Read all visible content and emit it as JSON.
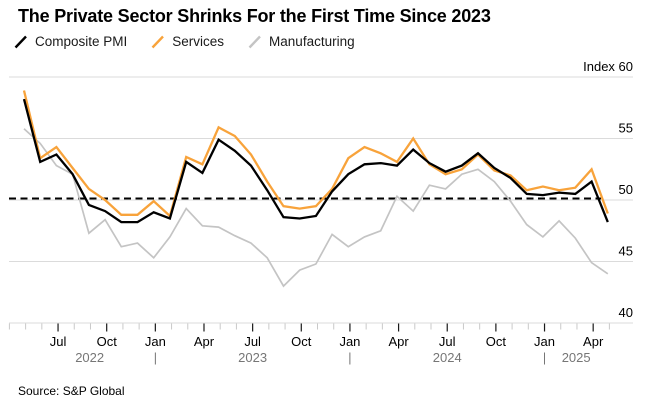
{
  "title": "The Private Sector Shrinks For the First Time Since 2023",
  "legend": {
    "items": [
      {
        "label": "Composite PMI",
        "color": "#000000",
        "icon": "diagonal-line-icon"
      },
      {
        "label": "Services",
        "color": "#F8A33B",
        "icon": "diagonal-line-icon"
      },
      {
        "label": "Manufacturing",
        "color": "#C4C4C4",
        "icon": "diagonal-line-icon"
      }
    ]
  },
  "source_line": "Source: S&P Global",
  "chart_data": {
    "type": "line",
    "title": "The Private Sector Shrinks For the First Time Since 2023",
    "x": [
      "Apr 2022",
      "May 2022",
      "Jun 2022",
      "Jul 2022",
      "Aug 2022",
      "Sep 2022",
      "Oct 2022",
      "Nov 2022",
      "Dec 2022",
      "Jan 2023",
      "Feb 2023",
      "Mar 2023",
      "Apr 2023",
      "May 2023",
      "Jun 2023",
      "Jul 2023",
      "Aug 2023",
      "Sep 2023",
      "Oct 2023",
      "Nov 2023",
      "Dec 2023",
      "Jan 2024",
      "Feb 2024",
      "Mar 2024",
      "Apr 2024",
      "May 2024",
      "Jun 2024",
      "Jul 2024",
      "Aug 2024",
      "Sep 2024",
      "Oct 2024",
      "Nov 2024",
      "Dec 2024",
      "Jan 2025",
      "Feb 2025",
      "Mar 2025",
      "Apr 2025"
    ],
    "series": [
      {
        "name": "Manufacturing",
        "color": "#C4C4C4",
        "stroke_width": 1.7,
        "values": [
          55.8,
          54.6,
          52.8,
          52.1,
          47.3,
          48.4,
          46.2,
          46.5,
          45.3,
          47.0,
          49.3,
          47.9,
          47.8,
          47.1,
          46.5,
          45.3,
          43.0,
          44.3,
          44.8,
          47.2,
          46.2,
          47.0,
          47.5,
          50.3,
          49.1,
          51.2,
          50.9,
          52.1,
          52.5,
          51.5,
          49.9,
          48.0,
          47.0,
          48.3,
          46.9,
          44.9,
          44.0
        ]
      },
      {
        "name": "Services",
        "color": "#F8A33B",
        "stroke_width": 2.3,
        "values": [
          58.9,
          53.4,
          54.3,
          52.6,
          50.9,
          50.0,
          48.8,
          48.8,
          49.9,
          48.7,
          53.5,
          52.9,
          55.9,
          55.2,
          53.7,
          51.5,
          49.5,
          49.3,
          49.5,
          50.9,
          53.4,
          54.3,
          53.8,
          53.1,
          55.0,
          52.9,
          52.1,
          52.5,
          53.7,
          52.4,
          52.0,
          50.8,
          51.1,
          50.8,
          51.0,
          52.5,
          48.9
        ]
      },
      {
        "name": "Composite PMI",
        "color": "#000000",
        "stroke_width": 2.3,
        "values": [
          58.2,
          53.1,
          53.7,
          52.1,
          49.6,
          49.1,
          48.2,
          48.2,
          49.0,
          48.5,
          53.1,
          52.2,
          54.9,
          54.0,
          52.8,
          50.8,
          48.6,
          48.5,
          48.7,
          50.7,
          52.1,
          52.9,
          53.0,
          52.8,
          54.1,
          53.0,
          52.3,
          52.8,
          53.8,
          52.6,
          51.8,
          50.5,
          50.4,
          50.6,
          50.5,
          51.5,
          48.2
        ]
      }
    ],
    "ylim": [
      40,
      60
    ],
    "y_ticks": [
      60,
      55,
      50,
      45,
      40
    ],
    "y_tick_labels": [
      "Index 60",
      "55",
      "50",
      "45",
      "40"
    ],
    "threshold_line": {
      "value": 50,
      "style": "dashed",
      "color": "#000000"
    },
    "x_quarter_ticks": [
      {
        "i": 3,
        "label": "Jul"
      },
      {
        "i": 6,
        "label": "Oct"
      },
      {
        "i": 9,
        "label": "Jan"
      },
      {
        "i": 12,
        "label": "Apr"
      },
      {
        "i": 15,
        "label": "Jul"
      },
      {
        "i": 18,
        "label": "Oct"
      },
      {
        "i": 21,
        "label": "Jan"
      },
      {
        "i": 24,
        "label": "Apr"
      },
      {
        "i": 27,
        "label": "Jul"
      },
      {
        "i": 30,
        "label": "Oct"
      },
      {
        "i": 33,
        "label": "Jan"
      },
      {
        "i": 36,
        "label": "Apr"
      }
    ],
    "year_labels": [
      {
        "label": "2022",
        "from": 0,
        "to": 9
      },
      {
        "label": "2023",
        "from": 9,
        "to": 21
      },
      {
        "label": "2024",
        "from": 21,
        "to": 33
      },
      {
        "label": "2025",
        "from": 33,
        "to": 37
      }
    ],
    "year_separator_indices": [
      9,
      21,
      33
    ],
    "grid": "horizontal",
    "grid_color": "#DBDBDB",
    "axis_text_color": "#000000",
    "year_text_color": "#767676",
    "legend_position": "top-left",
    "source": "S&P Global"
  }
}
